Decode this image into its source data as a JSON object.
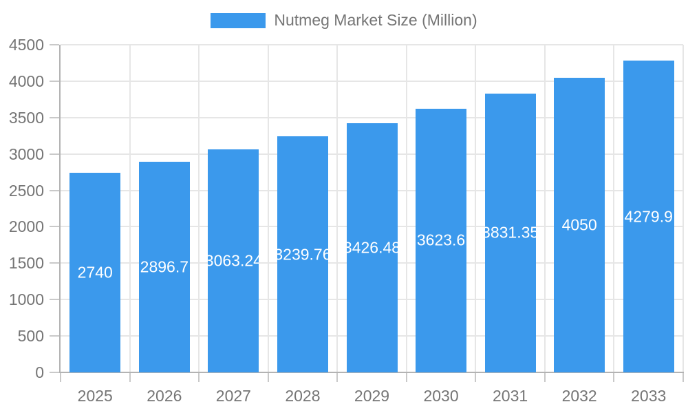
{
  "chart_data": {
    "type": "bar",
    "title": "Nutmeg Market Size (Million)",
    "legend": {
      "label": "Nutmeg Market Size (Million)",
      "position": "top"
    },
    "categories": [
      "2025",
      "2026",
      "2027",
      "2028",
      "2029",
      "2030",
      "2031",
      "2032",
      "2033"
    ],
    "series": [
      {
        "name": "Nutmeg Market Size (Million)",
        "values": [
          2740,
          2896.7,
          3063.24,
          3239.76,
          3426.48,
          3623.6,
          3831.35,
          4050,
          4279.9
        ]
      }
    ],
    "value_labels": [
      "2740",
      "2896.7",
      "3063.24",
      "3239.76",
      "3426.48",
      "3623.6",
      "3831.35",
      "4050",
      "4279.9"
    ],
    "xlabel": "",
    "ylabel": "",
    "ylim": [
      0,
      4500
    ],
    "y_ticks": [
      0,
      500,
      1000,
      1500,
      2000,
      2500,
      3000,
      3500,
      4000,
      4500
    ],
    "grid": true,
    "colors": {
      "bar": "#3B99EC",
      "grid": "#E6E6E6",
      "axis": "#B3B3B3",
      "tick": "#C9C9C9",
      "label_text": "#757575",
      "value_text": "#FFFFFF",
      "background": "#FFFFFF"
    }
  }
}
